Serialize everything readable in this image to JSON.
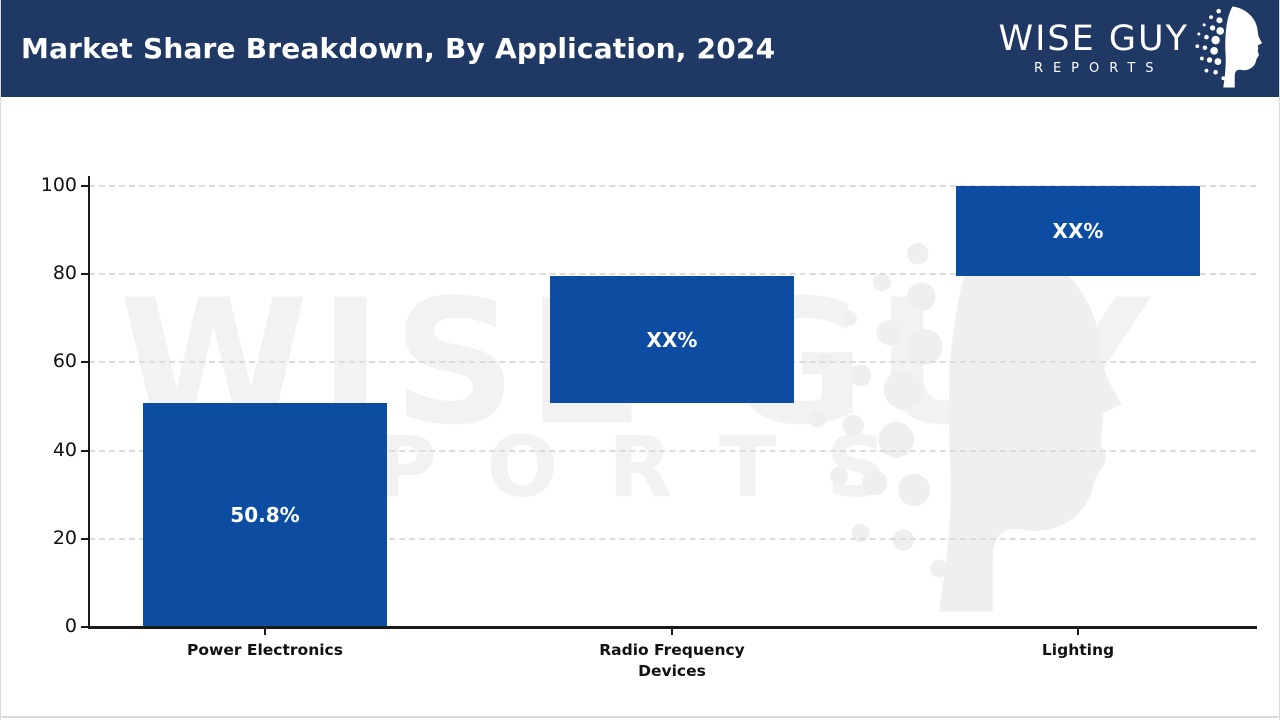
{
  "header": {
    "title": "Market Share Breakdown, By Application, 2024",
    "logo": {
      "line1": "WISE GUY",
      "line2": "REPORTS"
    },
    "bg_color": "#1f3864"
  },
  "watermark": {
    "line1": "WISE GUY",
    "line2": "REPORTS"
  },
  "chart_data": {
    "type": "bar",
    "variant": "floating_stacked_segments",
    "title": "Market Share Breakdown, By Application, 2024",
    "categories": [
      "Power Electronics",
      "Radio Frequency Devices",
      "Lighting"
    ],
    "segments": [
      {
        "category": "Power Electronics",
        "from": 0,
        "to": 50.8,
        "label": "50.8%"
      },
      {
        "category": "Radio Frequency Devices",
        "from": 50.8,
        "to": 79.5,
        "label": "XX%"
      },
      {
        "category": "Lighting",
        "from": 79.5,
        "to": 100,
        "label": "XX%"
      }
    ],
    "ylim": [
      0,
      100
    ],
    "yticks": [
      0,
      20,
      40,
      60,
      80,
      100
    ],
    "xlabel": "",
    "ylabel": "",
    "legend": "none",
    "grid": "horizontal-dashed",
    "bar_color": "#0c4da2",
    "grid_color": "#dcdcdc",
    "axis_color": "#1a1a1a"
  }
}
